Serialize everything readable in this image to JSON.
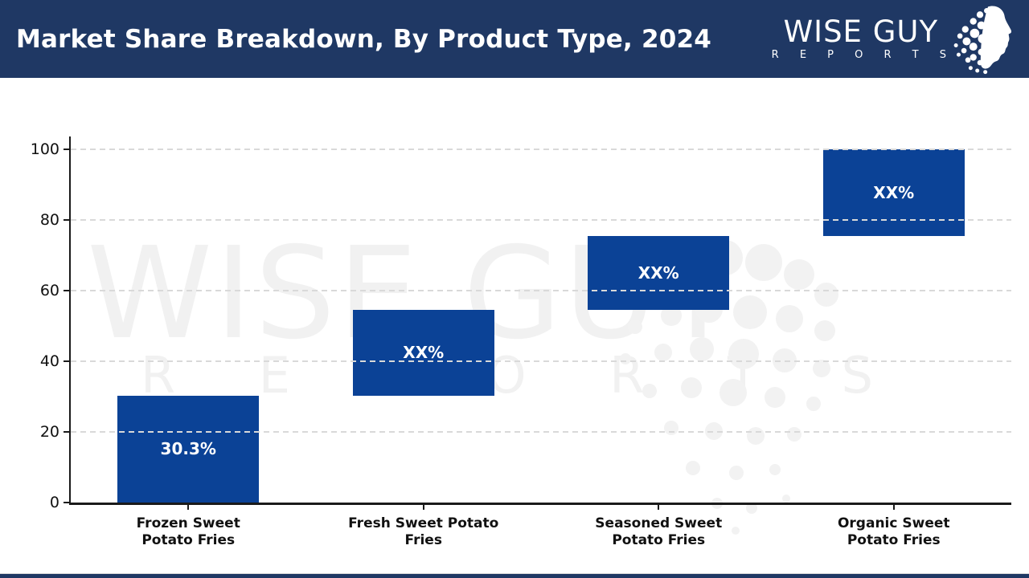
{
  "header": {
    "title": "Market Share Breakdown, By Product Type, 2024",
    "logo": {
      "name": "WISE GUY",
      "sub": "R E P O R T S"
    }
  },
  "watermark": {
    "line1": "WISE GUY",
    "line2": "R E P O R T S"
  },
  "colors": {
    "header_bg": "#1f3864",
    "bar_blue": "#0b4296",
    "gridline": "#d9d9d9",
    "axis": "#1a1a1a",
    "watermark_gray": "#f1f1f1"
  },
  "chart_data": {
    "type": "bar",
    "subtype": "floating-waterfall",
    "title": "Market Share Breakdown, By Product Type, 2024",
    "categories": [
      "Frozen Sweet\nPotato Fries",
      "Fresh Sweet Potato\nFries",
      "Seasoned Sweet\nPotato Fries",
      "Organic Sweet\nPotato Fries"
    ],
    "segments": [
      {
        "start": 0,
        "end": 30.3,
        "label": "30.3%"
      },
      {
        "start": 30.3,
        "end": 54.5,
        "label": "XX%"
      },
      {
        "start": 54.5,
        "end": 75.5,
        "label": "XX%"
      },
      {
        "start": 75.5,
        "end": 100,
        "label": "XX%"
      }
    ],
    "xlabel": "",
    "ylabel": "",
    "ylim": [
      0,
      100
    ],
    "yticks": [
      0,
      20,
      40,
      60,
      80,
      100
    ],
    "grid": "horizontal-dashed-above-bars",
    "legend": "none",
    "bar_color": "#0b4296",
    "bar_label_color": "#ffffff"
  }
}
